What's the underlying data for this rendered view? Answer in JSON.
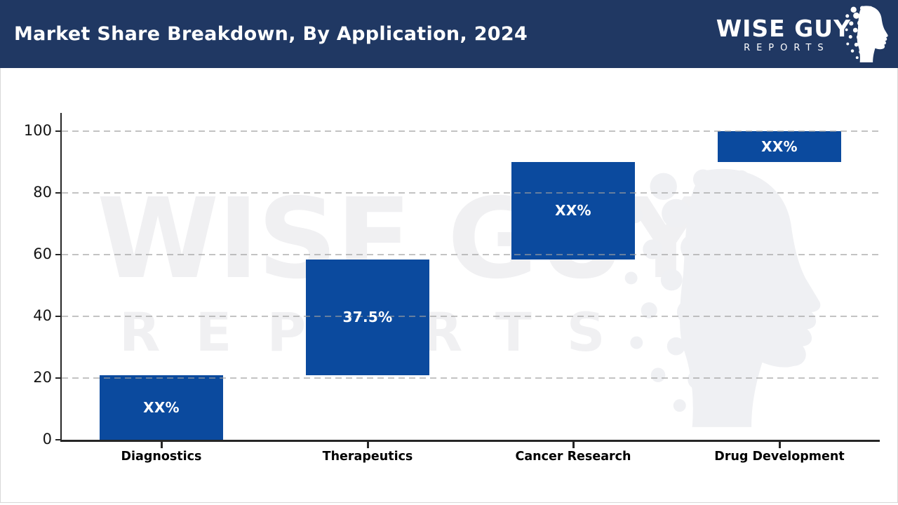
{
  "header": {
    "background": "#203863",
    "title": "Market Share Breakdown, By Application, 2024",
    "logo": {
      "line1": "WISE GUY",
      "line2": "REPORTS"
    }
  },
  "watermark": {
    "line1": "WISE GUY",
    "line2": "REPORTS"
  },
  "chart_data": {
    "type": "bar",
    "subtype": "waterfall",
    "title": "Market Share Breakdown, By Application, 2024",
    "categories": [
      "Diagnostics",
      "Therapeutics",
      "Cancer Research",
      "Drug Development"
    ],
    "segments": [
      {
        "category": "Diagnostics",
        "start": 0,
        "end": 21,
        "label": "XX%"
      },
      {
        "category": "Therapeutics",
        "start": 21,
        "end": 58.5,
        "label": "37.5%"
      },
      {
        "category": "Cancer Research",
        "start": 58.5,
        "end": 90,
        "label": "XX%"
      },
      {
        "category": "Drug Development",
        "start": 90,
        "end": 100,
        "label": "XX%"
      }
    ],
    "xlabel": "",
    "ylabel": "",
    "ylim": [
      0,
      100
    ],
    "yticks": [
      "0",
      "20",
      "40",
      "60",
      "80",
      "100"
    ],
    "grid": {
      "axis": "y",
      "style": "dashed",
      "drawn_over_bars": true
    },
    "legend": "none",
    "bar_color": "#0b4a9e",
    "bar_label_color": "#ffffff",
    "axis_color": "#262626"
  }
}
